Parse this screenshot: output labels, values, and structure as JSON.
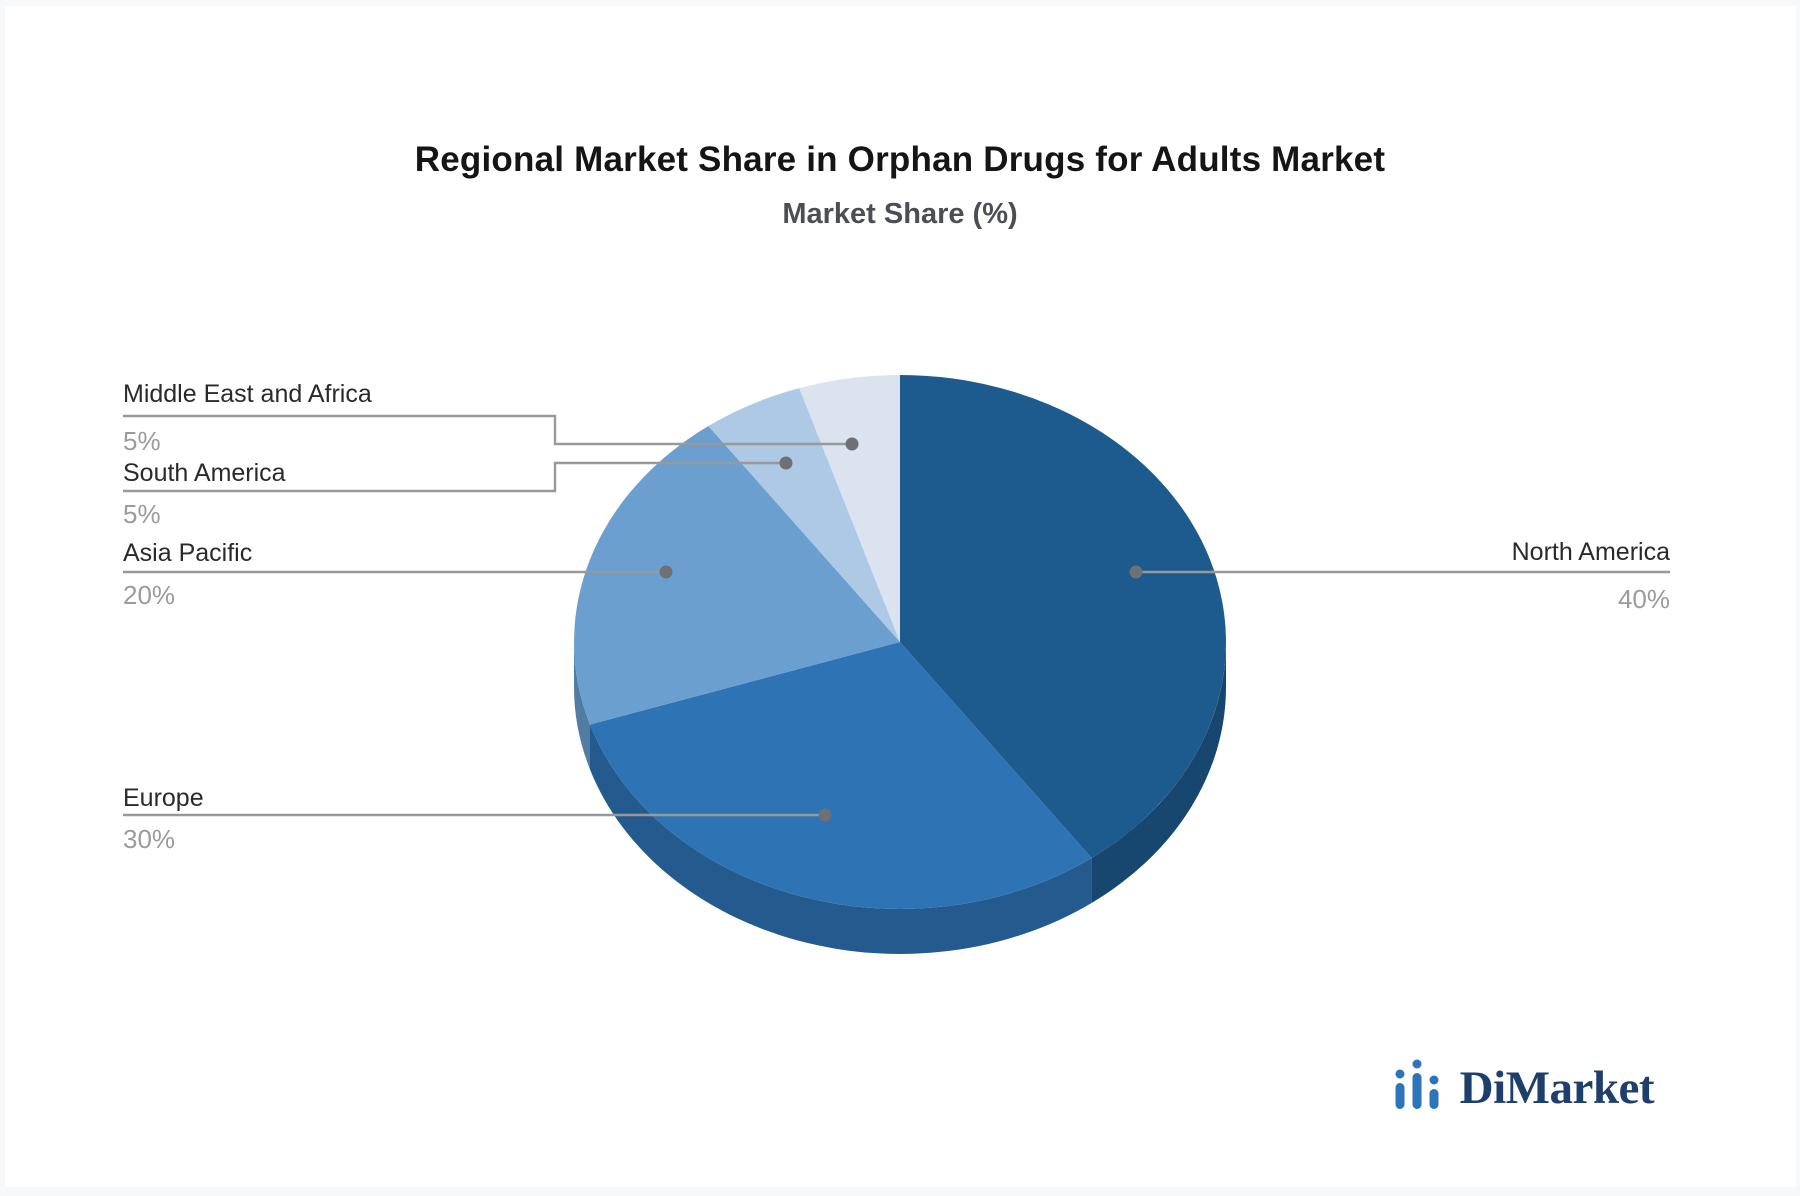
{
  "page": {
    "title": "Regional Market Share in Orphan Drugs for Adults Market",
    "subtitle": "Market Share (%)"
  },
  "chart_data": {
    "type": "pie",
    "style": "3d",
    "title": "Regional Market Share in Orphan Drugs for Adults Market",
    "subtitle": "Market Share (%)",
    "unit": "%",
    "start_angle": "12-oclock",
    "direction": "clockwise",
    "slices": [
      {
        "label": "North America",
        "value": 40,
        "display": "40%",
        "color": "#1d5a8e"
      },
      {
        "label": "Europe",
        "value": 30,
        "display": "30%",
        "color": "#2e74b5"
      },
      {
        "label": "Asia Pacific",
        "value": 20,
        "display": "20%",
        "color": "#6b9fd0"
      },
      {
        "label": "South America",
        "value": 5,
        "display": "5%",
        "color": "#aec9e5"
      },
      {
        "label": "Middle East and Africa",
        "value": 5,
        "display": "5%",
        "color": "#dbe3ee"
      }
    ],
    "legend_position": "callout-labels",
    "grid": false
  },
  "branding": {
    "logo_text": "DiMarket"
  }
}
